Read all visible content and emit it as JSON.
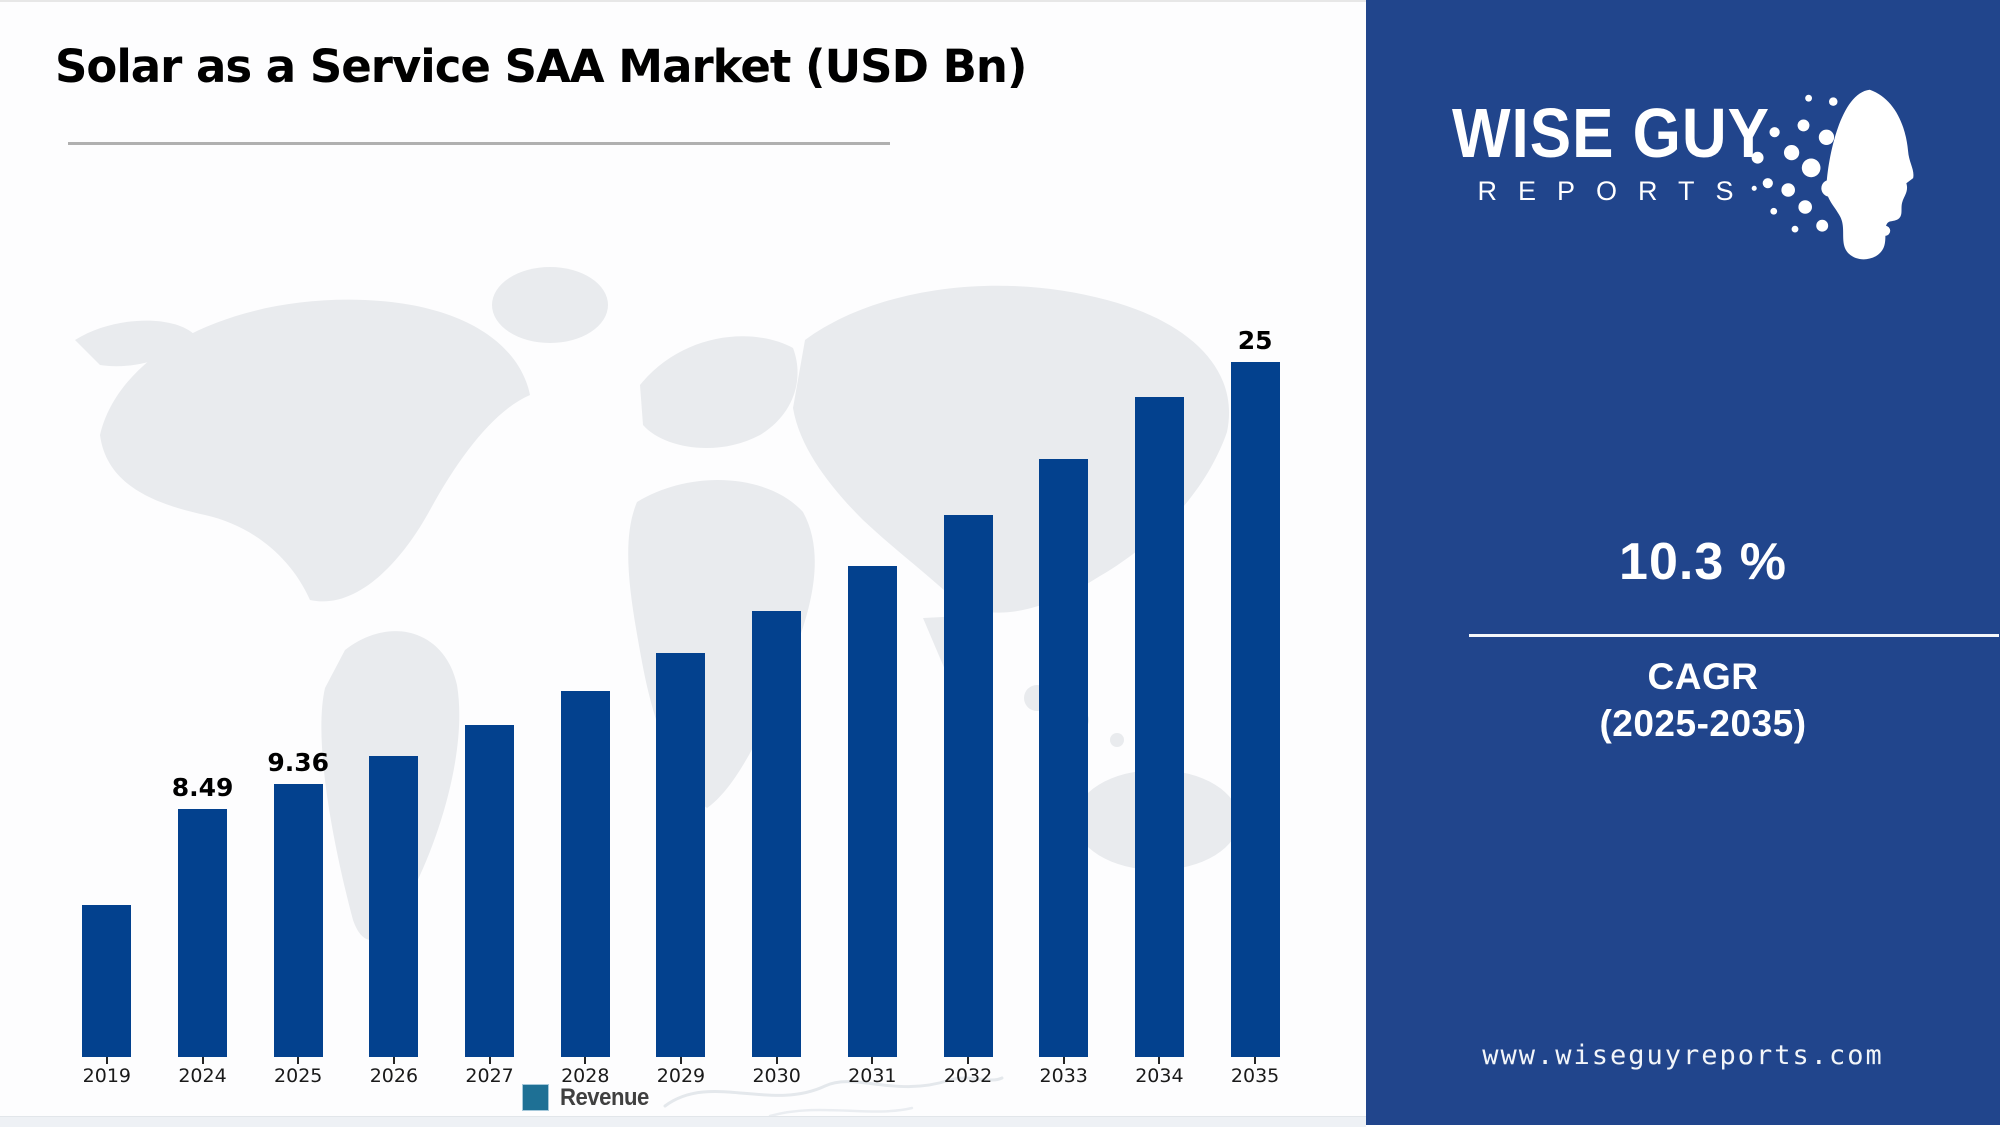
{
  "title": "Solar as a Service SAA Market (USD Bn)",
  "chart_data": {
    "type": "bar",
    "title": "Solar as a Service SAA Market (USD Bn)",
    "xlabel": "",
    "ylabel": "",
    "ylim": [
      0,
      25
    ],
    "grid": false,
    "legend_position": "bottom",
    "categories": [
      "2019",
      "2024",
      "2025",
      "2026",
      "2027",
      "2028",
      "2029",
      "2030",
      "2031",
      "2032",
      "2033",
      "2034",
      "2035"
    ],
    "series": [
      {
        "name": "Revenue",
        "values": [
          5.2,
          8.49,
          9.36,
          10.32,
          11.38,
          12.56,
          13.85,
          15.28,
          16.85,
          18.59,
          20.5,
          22.62,
          25
        ],
        "data_labels": [
          "",
          "8.49",
          "9.36",
          "",
          "",
          "",
          "",
          "",
          "",
          "",
          "",
          "",
          "25"
        ]
      }
    ],
    "bar_color": "#03418e",
    "legend_swatch_color": "#1e7095"
  },
  "legend": {
    "label": "Revenue"
  },
  "sidebar": {
    "logo_line1": "WISE GUY",
    "logo_line2": "REPORTS",
    "cagr_value": "10.3 %",
    "cagr_label": "CAGR",
    "cagr_range": "(2025-2035)",
    "website": "www.wiseguyreports.com"
  },
  "colors": {
    "bar": "#03418e",
    "sidebar_background": "#21458c",
    "legend_swatch": "#1e7095",
    "map_watermark": "#e9ebee",
    "title_underline": "#b0b0b0",
    "title_text": "#000000"
  }
}
